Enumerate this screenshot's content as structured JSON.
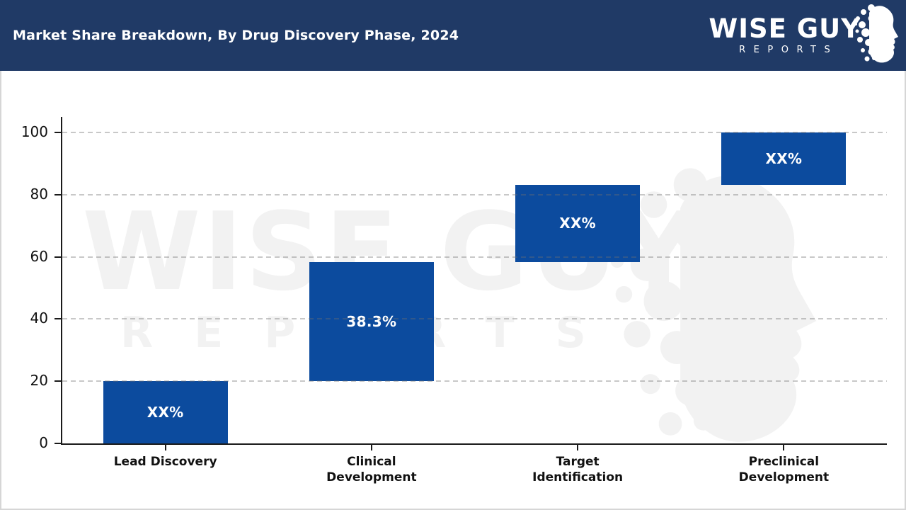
{
  "header": {
    "title": "Market Share Breakdown, By Drug Discovery Phase, 2024",
    "logo": {
      "line1": "WISE GUY",
      "line2": "REPORTS"
    }
  },
  "watermark": {
    "line1": "WISE GUY",
    "line2": "REPORTS"
  },
  "colors": {
    "header_bg": "#203A66",
    "bar": "#0C4B9E",
    "bar_label": "#FFFFFF",
    "axis": "#1A1A1A",
    "gridline": "#D9D9D9",
    "watermark": "#F2F2F2",
    "frame_border": "#D6D6D6"
  },
  "chart_data": {
    "type": "bar",
    "subtype": "waterfall-floating-bars",
    "title": "Market Share Breakdown, By Drug Discovery Phase, 2024",
    "categories": [
      "Lead Discovery",
      "Clinical Development",
      "Target Identification",
      "Preclinical Development"
    ],
    "segments": [
      {
        "category": "Lead Discovery",
        "start": 0,
        "end": 20,
        "label": "XX%"
      },
      {
        "category": "Clinical Development",
        "start": 20,
        "end": 58.3,
        "label": "38.3%"
      },
      {
        "category": "Target Identification",
        "start": 58.3,
        "end": 83.2,
        "label": "XX%"
      },
      {
        "category": "Preclinical Development",
        "start": 83.2,
        "end": 100,
        "label": "XX%"
      }
    ],
    "xlabel": "",
    "ylabel": "",
    "ylim": [
      0,
      100
    ],
    "yticks": [
      0,
      20,
      40,
      60,
      80,
      100
    ],
    "grid": "horizontal-dashed",
    "legend": "none",
    "bar_color": "#0C4B9E",
    "bar_label_color": "#FFFFFF"
  }
}
